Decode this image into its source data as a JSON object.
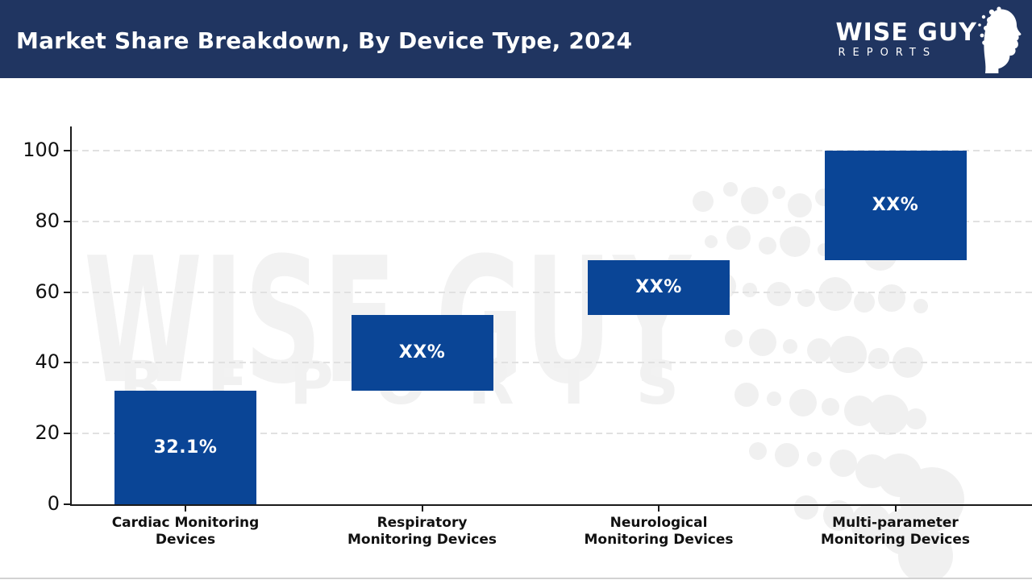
{
  "header": {
    "title": "Market Share Breakdown, By Device Type, 2024",
    "background": "#203561",
    "brand": {
      "line1": "WISE GUY",
      "line2": "REPORTS"
    }
  },
  "watermark": {
    "line1": "WISE GUY",
    "line2": "REPORTS"
  },
  "chart_data": {
    "type": "bar",
    "subtype": "waterfall",
    "title": "Market Share Breakdown, By Device Type, 2024",
    "xlabel": "",
    "ylabel": "",
    "ylim": [
      0,
      106
    ],
    "yticks": [
      0,
      20,
      40,
      60,
      80,
      100
    ],
    "grid": "horizontal-dashed",
    "bar_color": "#0a4596",
    "bar_label_color": "#ffffff",
    "categories": [
      {
        "label": "Cardiac Monitoring Devices",
        "lines": [
          "Cardiac Monitoring",
          "Devices"
        ]
      },
      {
        "label": "Respiratory Monitoring Devices",
        "lines": [
          "Respiratory",
          "Monitoring Devices"
        ]
      },
      {
        "label": "Neurological Monitoring Devices",
        "lines": [
          "Neurological",
          "Monitoring Devices"
        ]
      },
      {
        "label": "Multi-parameter Monitoring Devices",
        "lines": [
          "Multi-parameter",
          "Monitoring Devices"
        ]
      }
    ],
    "series": [
      {
        "name": "Market Share",
        "segments": [
          {
            "category": "Cardiac Monitoring Devices",
            "start": 0,
            "end": 32.1,
            "value": 32.1,
            "label": "32.1%"
          },
          {
            "category": "Respiratory Monitoring Devices",
            "start": 32.1,
            "end": 53.6,
            "value": 21.5,
            "label": "XX%"
          },
          {
            "category": "Neurological Monitoring Devices",
            "start": 53.6,
            "end": 69.1,
            "value": 15.5,
            "label": "XX%"
          },
          {
            "category": "Multi-parameter Monitoring Devices",
            "start": 69.1,
            "end": 100,
            "value": 30.9,
            "label": "XX%"
          }
        ]
      }
    ]
  }
}
